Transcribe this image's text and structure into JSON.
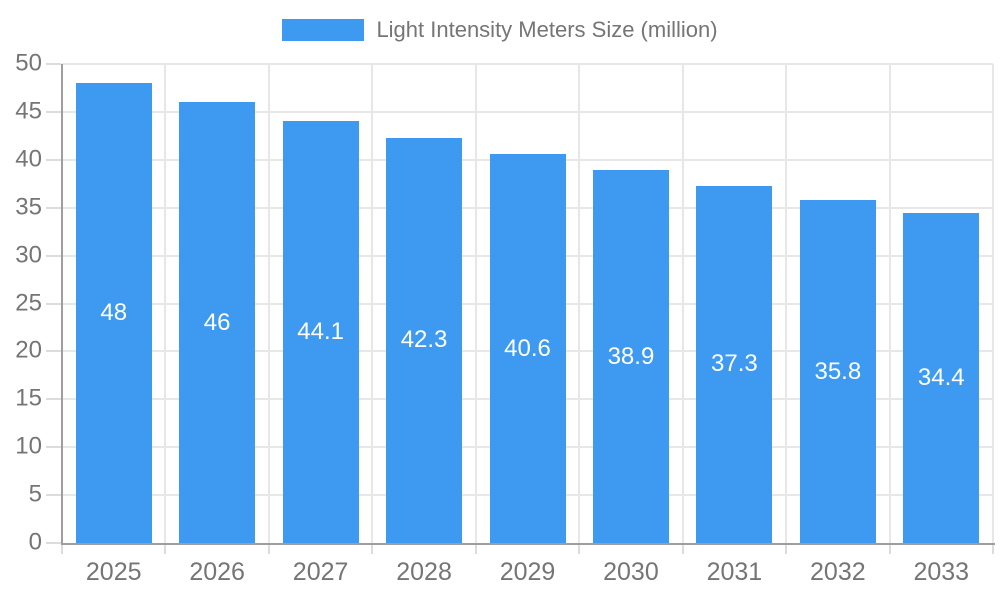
{
  "chart_data": {
    "type": "bar",
    "title": "",
    "xlabel": "",
    "ylabel": "",
    "legend": "Light Intensity Meters Size (million)",
    "legend_position": "top-center",
    "categories": [
      "2025",
      "2026",
      "2027",
      "2028",
      "2029",
      "2030",
      "2031",
      "2032",
      "2033"
    ],
    "series": [
      {
        "name": "Light Intensity Meters Size (million)",
        "values": [
          48,
          46,
          44.1,
          42.3,
          40.6,
          38.9,
          37.3,
          35.8,
          34.4
        ],
        "value_labels": [
          "48",
          "46",
          "44.1",
          "42.3",
          "40.6",
          "38.9",
          "37.3",
          "35.8",
          "34.4"
        ]
      }
    ],
    "ylim": [
      0,
      50
    ],
    "ytick_step": 5,
    "ytick_labels": [
      "0",
      "5",
      "10",
      "15",
      "20",
      "25",
      "30",
      "35",
      "40",
      "45",
      "50"
    ],
    "grid": true,
    "colors": {
      "bar": "#3d9af0",
      "grid": "#e7e7e7",
      "axis": "#9e9e9e",
      "tick": "#dcdcdc",
      "axis_label": "#757575",
      "value_label": "#ffffff",
      "background": "#ffffff"
    }
  }
}
